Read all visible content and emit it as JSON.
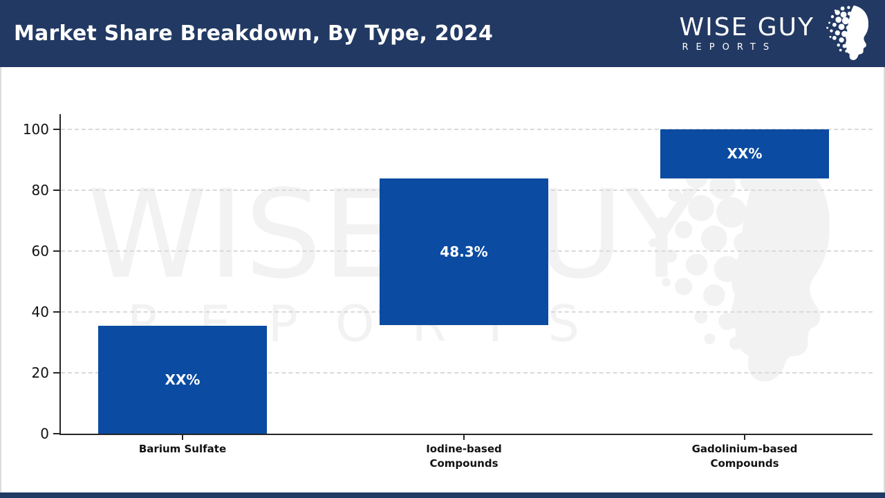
{
  "header": {
    "title": "Market Share Breakdown, By Type, 2024",
    "logo": {
      "line1": "WISE GUY",
      "line2": "REPORTS"
    }
  },
  "watermark": {
    "line1": "WISE GUY",
    "line2": "REPORTS"
  },
  "colors": {
    "header_bg": "#223963",
    "footer_bg": "#223963",
    "bar": "#0B4BA1",
    "grid": "#d9d9d9",
    "axis": "#262626",
    "watermark": "#f2f2f2",
    "bar_label": "#ffffff",
    "tick_label": "#111111"
  },
  "chart_data": {
    "type": "bar",
    "subtype": "stacked-waterfall-segments",
    "title": "Market Share Breakdown, By Type, 2024",
    "categories": [
      "Barium Sulfate",
      "Iodine-based Compounds",
      "Gadolinium-based Compounds"
    ],
    "category_lines": [
      [
        "Barium Sulfate"
      ],
      [
        "Iodine-based",
        "Compounds"
      ],
      [
        "Gadolinium-based",
        "Compounds"
      ]
    ],
    "segments": [
      {
        "category": "Barium Sulfate",
        "start": 0,
        "end": 35.5,
        "label": "XX%"
      },
      {
        "category": "Iodine-based Compounds",
        "start": 35.6,
        "end": 83.9,
        "label": "48.3%"
      },
      {
        "category": "Gadolinium-based Compounds",
        "start": 83.9,
        "end": 100,
        "label": "XX%"
      }
    ],
    "yticks": [
      0,
      20,
      40,
      60,
      80,
      100
    ],
    "ylim": [
      0,
      105
    ],
    "xlabel": "",
    "ylabel": "",
    "grid": "horizontal-dashed",
    "legend": "none"
  }
}
